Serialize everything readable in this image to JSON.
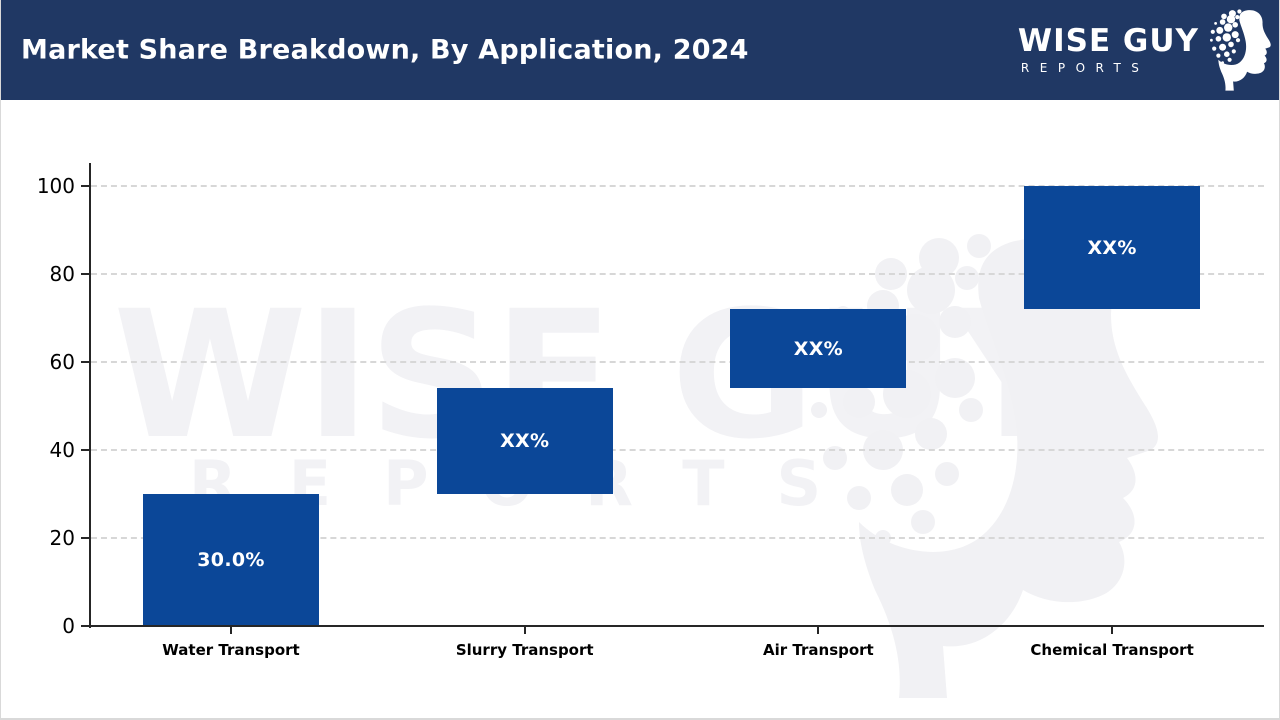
{
  "header": {
    "title": "Market Share Breakdown, By Application, 2024",
    "logo": {
      "line1": "WISE GUY",
      "line2": "REPORTS"
    }
  },
  "watermark": {
    "line1": "WISE GUY",
    "line2": "REPORTS"
  },
  "colors": {
    "header_bg": "#203864",
    "bar": "#0b4798",
    "axis": "#262626",
    "grid": "#d7d7d7",
    "bar_label": "#ffffff",
    "watermark": "#f2f2f5"
  },
  "chart_data": {
    "type": "bar",
    "subtype": "waterfall",
    "title": "Market Share Breakdown, By Application, 2024",
    "categories": [
      "Water Transport",
      "Slurry Transport",
      "Air Transport",
      "Chemical Transport"
    ],
    "bars": [
      {
        "category": "Water Transport",
        "start": 0,
        "end": 30,
        "label": "30.0%"
      },
      {
        "category": "Slurry Transport",
        "start": 30,
        "end": 54,
        "label": "XX%"
      },
      {
        "category": "Air Transport",
        "start": 54,
        "end": 72,
        "label": "XX%"
      },
      {
        "category": "Chemical Transport",
        "start": 72,
        "end": 100,
        "label": "XX%"
      }
    ],
    "xlabel": "",
    "ylabel": "",
    "ylim": [
      0,
      100
    ],
    "yticks": [
      0,
      20,
      40,
      60,
      80,
      100
    ],
    "grid": "horizontal-dashed",
    "legend": "none",
    "bar_color": "#0b4798"
  }
}
